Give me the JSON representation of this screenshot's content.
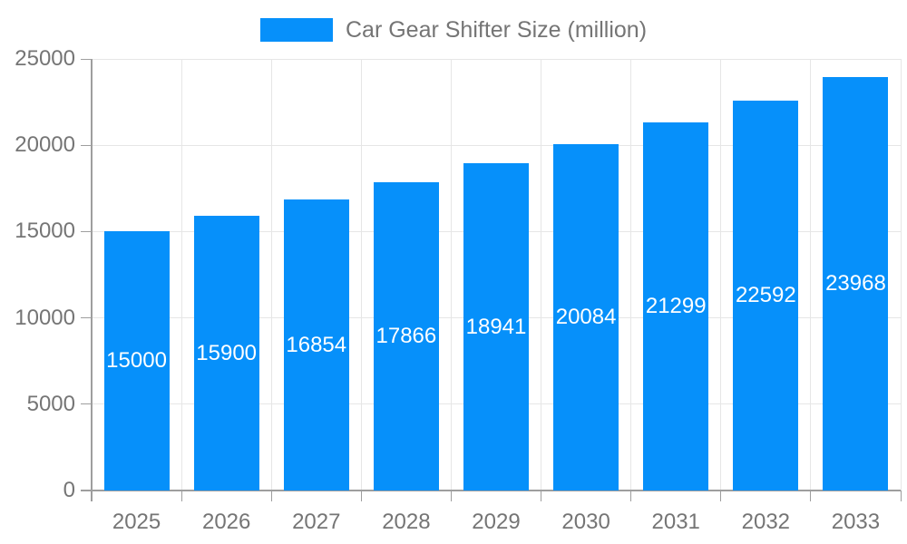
{
  "legend": {
    "label": "Car Gear Shifter Size (million)"
  },
  "chart_data": {
    "type": "bar",
    "title": "Car Gear Shifter Size (million)",
    "categories": [
      "2025",
      "2026",
      "2027",
      "2028",
      "2029",
      "2030",
      "2031",
      "2032",
      "2033"
    ],
    "values": [
      15000,
      15900,
      16854,
      17866,
      18941,
      20084,
      21299,
      22592,
      23968
    ],
    "series": [
      {
        "name": "Car Gear Shifter Size (million)",
        "values": [
          15000,
          15900,
          16854,
          17866,
          18941,
          20084,
          21299,
          22592,
          23968
        ]
      }
    ],
    "xlabel": "",
    "ylabel": "",
    "ylim": [
      0,
      25000
    ],
    "yticks": [
      0,
      5000,
      10000,
      15000,
      20000,
      25000
    ],
    "grid": true,
    "legend_position": "top",
    "bar_labels_shown": true
  },
  "colors": {
    "bar": "#0690fa",
    "axis_line": "#9e9e9e",
    "tick_line": "#9e9e9e",
    "grid_line": "#e6e6e6",
    "axis_text": "#757575",
    "legend_text": "#757575",
    "bar_label_text": "#ffffff",
    "background": "#ffffff"
  }
}
